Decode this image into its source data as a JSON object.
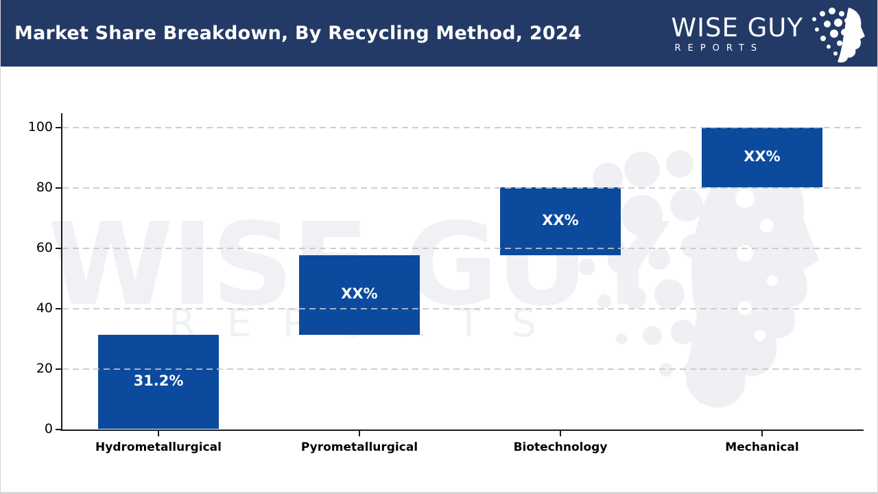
{
  "header": {
    "title": "Market Share Breakdown, By Recycling Method, 2024",
    "logo": {
      "line1": "WISE GUY",
      "line2": "REPORTS"
    }
  },
  "watermark": {
    "line1": "WISE GUY",
    "line2": "R E P O R T S"
  },
  "chart_data": {
    "type": "bar",
    "subtype": "waterfall",
    "title": "Market Share Breakdown, By Recycling Method, 2024",
    "xlabel": "",
    "ylabel": "",
    "ylim": [
      0,
      100
    ],
    "y_ticks": [
      0,
      20,
      40,
      60,
      80,
      100
    ],
    "grid": "horizontal-dashed",
    "legend": "none",
    "categories": [
      "Hydrometallurgical",
      "Pyrometallurgical",
      "Biotechnology",
      "Mechanical"
    ],
    "segments": [
      {
        "category": "Hydrometallurgical",
        "start": 0,
        "end": 31.2,
        "label": "31.2%"
      },
      {
        "category": "Pyrometallurgical",
        "start": 31.2,
        "end": 57.7,
        "label": "XX%"
      },
      {
        "category": "Biotechnology",
        "start": 57.7,
        "end": 80.2,
        "label": "XX%"
      },
      {
        "category": "Mechanical",
        "start": 80.2,
        "end": 100,
        "label": "XX%"
      }
    ],
    "bar_color": "#0C4A9E",
    "bar_label_color": "#FFFFFF",
    "axis_color": "#1A1A1A",
    "gridline_color": "#C6C6C6",
    "header_color": "#233A66",
    "watermark_color": "#F0F1F4"
  }
}
